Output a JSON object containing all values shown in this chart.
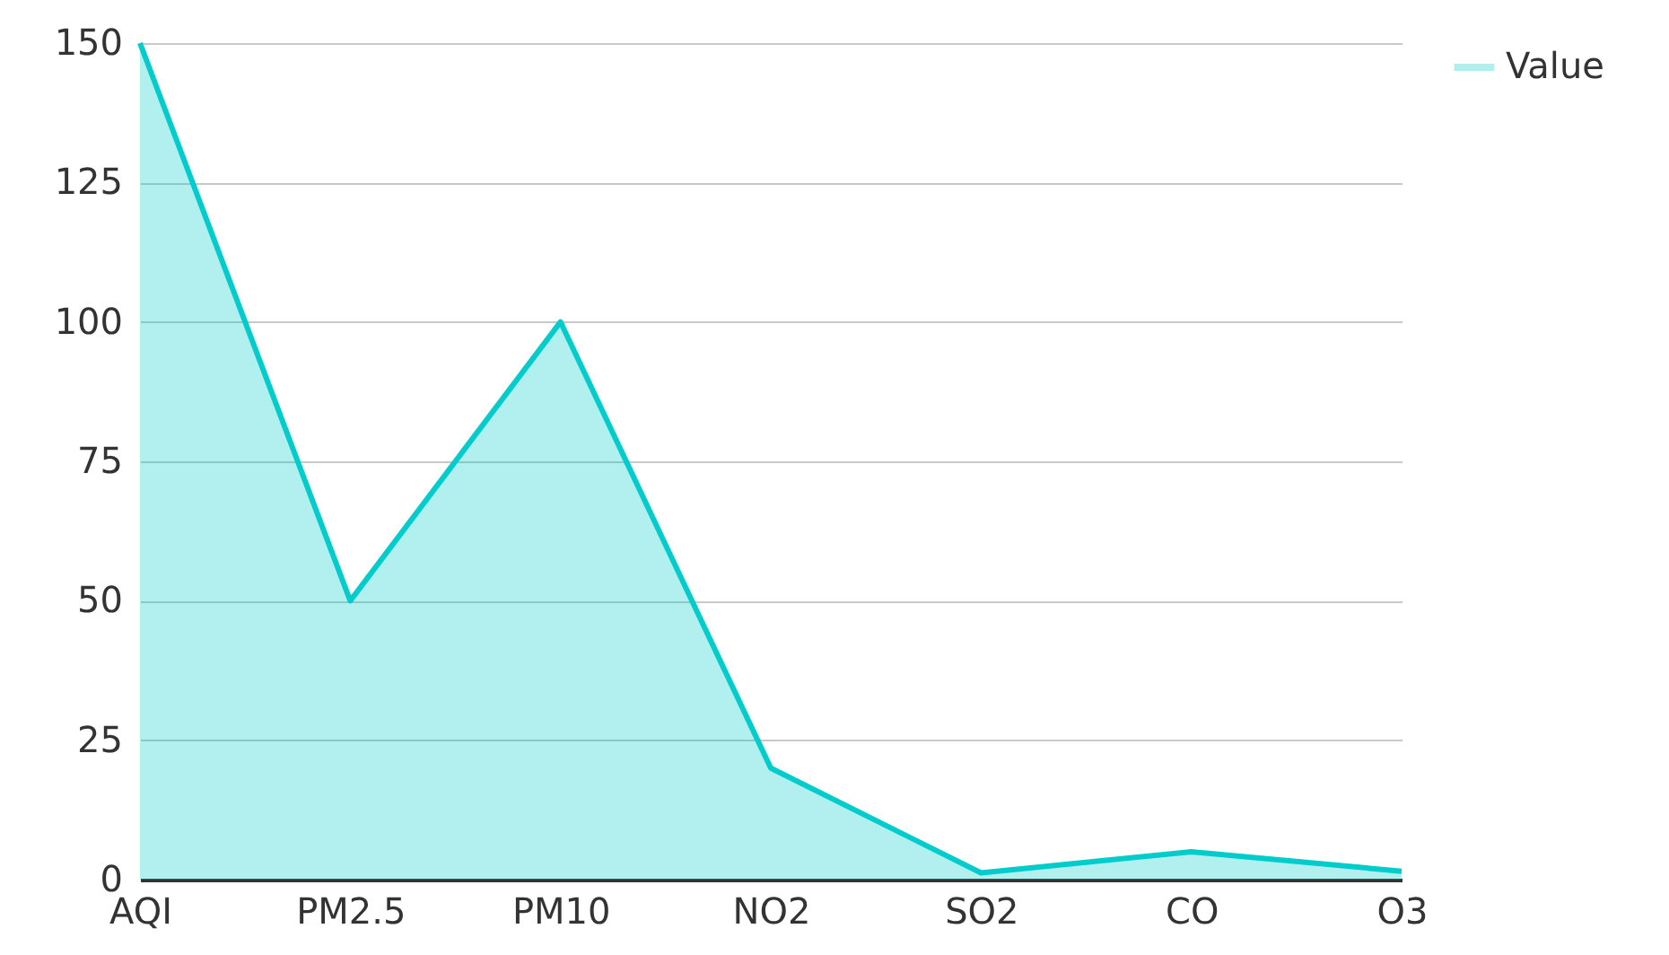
{
  "chart_data": {
    "type": "area",
    "categories": [
      "AQI",
      "PM2.5",
      "PM10",
      "NO2",
      "SO2",
      "CO",
      "O3"
    ],
    "series": [
      {
        "name": "Value",
        "color": "#00cccc",
        "values": [
          150,
          50,
          100,
          20,
          1.2,
          5,
          1.5
        ]
      }
    ],
    "ylim": [
      0,
      150
    ],
    "yticks": [
      0,
      25,
      50,
      75,
      100,
      125,
      150
    ],
    "grid": "y",
    "legend": "top right"
  }
}
